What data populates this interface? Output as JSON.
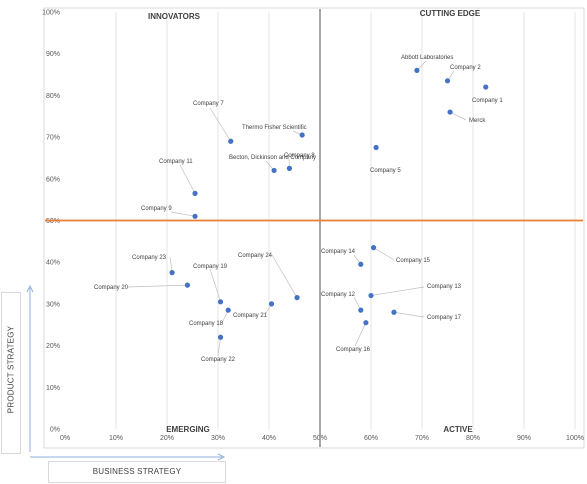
{
  "chart_data": {
    "type": "scatter",
    "xlabel": "BUSINESS STRATEGY",
    "ylabel": "PRODUCT STRATEGY",
    "xlim": [
      0,
      100
    ],
    "ylim": [
      0,
      100
    ],
    "x_ticks": [
      "0%",
      "10%",
      "20%",
      "30%",
      "40%",
      "50%",
      "60%",
      "70%",
      "80%",
      "90%",
      "100%"
    ],
    "y_ticks": [
      "0%",
      "10%",
      "20%",
      "30%",
      "40%",
      "50%",
      "60%",
      "70%",
      "80%",
      "90%",
      "100%"
    ],
    "grid": "vertical",
    "quadrants": {
      "top_left": "INNOVATORS",
      "top_right": "CUTTING EDGE",
      "bottom_left": "EMERGING",
      "bottom_right": "ACTIVE"
    },
    "divider": {
      "x": 50,
      "y": 50
    },
    "points": [
      {
        "name": "Company 1",
        "x": 82.5,
        "y": 82
      },
      {
        "name": "Company 2",
        "x": 75,
        "y": 83.5
      },
      {
        "name": "Abbott Laboratories",
        "x": 69,
        "y": 86
      },
      {
        "name": "Merck",
        "x": 75.5,
        "y": 76
      },
      {
        "name": "Company 5",
        "x": 61,
        "y": 67.5
      },
      {
        "name": "Company 7",
        "x": 32.5,
        "y": 69
      },
      {
        "name": "Thermo Fisher Scientific",
        "x": 46.5,
        "y": 70.5
      },
      {
        "name": "Company 8",
        "x": 44,
        "y": 62.5
      },
      {
        "name": "Becton, Dickinson and Company",
        "x": 41,
        "y": 62
      },
      {
        "name": "Company 11",
        "x": 25.5,
        "y": 56.5
      },
      {
        "name": "Company 9",
        "x": 25.5,
        "y": 51
      },
      {
        "name": "Company 14",
        "x": 58,
        "y": 39.5
      },
      {
        "name": "Company 15",
        "x": 60.5,
        "y": 43.5
      },
      {
        "name": "Company 13",
        "x": 60,
        "y": 32
      },
      {
        "name": "Company 12",
        "x": 58,
        "y": 28.5
      },
      {
        "name": "Company 17",
        "x": 64.5,
        "y": 28
      },
      {
        "name": "Company 16",
        "x": 59,
        "y": 25.5
      },
      {
        "name": "Company 23",
        "x": 21,
        "y": 37.5
      },
      {
        "name": "Company 19",
        "x": 30.5,
        "y": 30.5
      },
      {
        "name": "Company 20",
        "x": 24,
        "y": 34.5
      },
      {
        "name": "Company 24",
        "x": 45.5,
        "y": 31.5
      },
      {
        "name": "Company 21",
        "x": 40.5,
        "y": 30
      },
      {
        "name": "Company 18",
        "x": 32,
        "y": 28.5
      },
      {
        "name": "Company 22",
        "x": 30.5,
        "y": 22
      }
    ]
  }
}
